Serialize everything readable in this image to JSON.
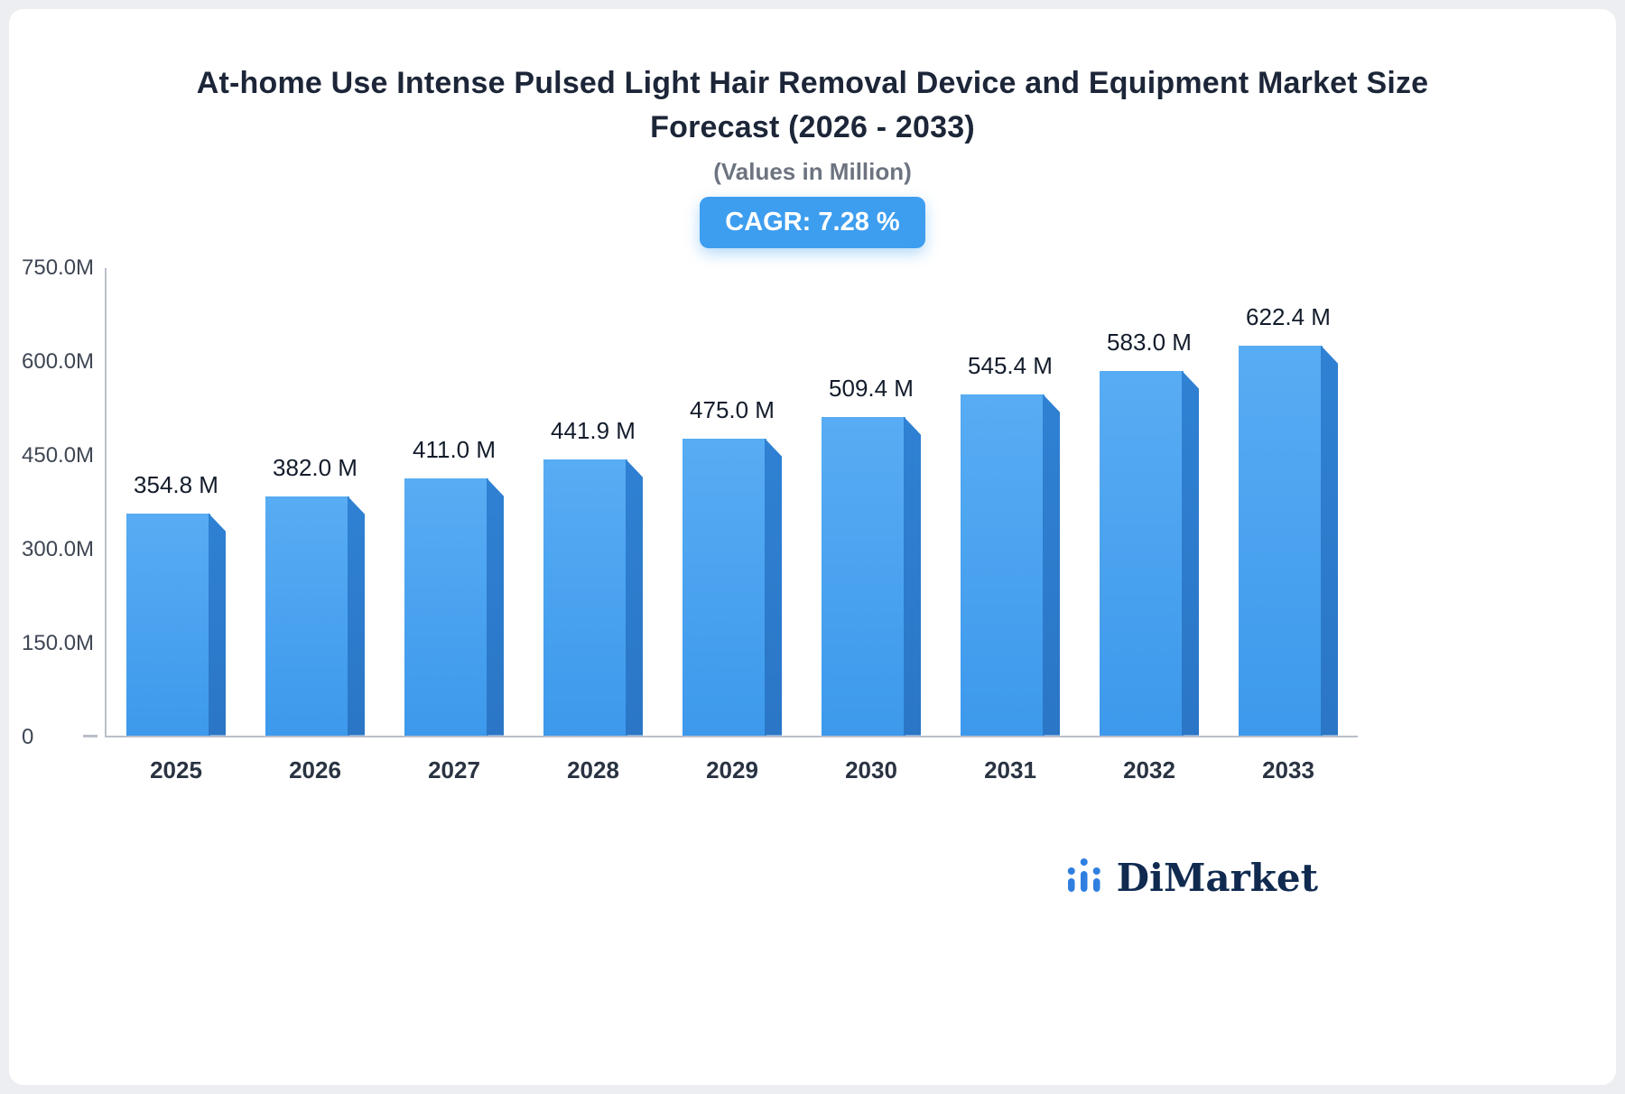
{
  "header": {
    "title_lines": [
      "At-home Use Intense Pulsed Light Hair Removal Device and Equipment Market Size",
      "Forecast (2026 - 2033)"
    ],
    "subtitle": "(Values in Million)",
    "cagr_badge": "CAGR: 7.28 %"
  },
  "chart_data": {
    "type": "bar",
    "title": "At-home Use Intense Pulsed Light Hair Removal Device and Equipment Market Size Forecast (2026 - 2033)",
    "subtitle": "(Values in Million)",
    "annotation": "CAGR: 7.28 %",
    "categories": [
      "2025",
      "2026",
      "2027",
      "2028",
      "2029",
      "2030",
      "2031",
      "2032",
      "2033"
    ],
    "values": [
      354.8,
      382.0,
      411.0,
      441.9,
      475.0,
      509.4,
      545.4,
      583.0,
      622.4
    ],
    "value_labels": [
      "354.8 M",
      "382.0 M",
      "411.0 M",
      "441.9 M",
      "475.0 M",
      "509.4 M",
      "545.4 M",
      "583.0 M",
      "622.4 M"
    ],
    "unit": "Million",
    "xlabel": "",
    "ylabel": "",
    "ylim": [
      0,
      750
    ],
    "ytick_labels": [
      "750.0M",
      "600.0M",
      "450.0M",
      "300.0M",
      "150.0M",
      "0"
    ],
    "grid": false,
    "legend": null
  },
  "colors": {
    "bar_front_top": "#58acf3",
    "bar_front_bottom": "#3d99ec",
    "bar_side": "#2d7ccd",
    "badge_background": "#3d9ef0",
    "badge_text": "#ffffff",
    "title_text": "#1c2638",
    "subtitle_text": "#6d7480",
    "axis_line": "#b9bfc9",
    "logo_blue": "#2f7fe0",
    "logo_navy": "#102a50"
  },
  "branding": {
    "logo_text": "DiMarket"
  }
}
